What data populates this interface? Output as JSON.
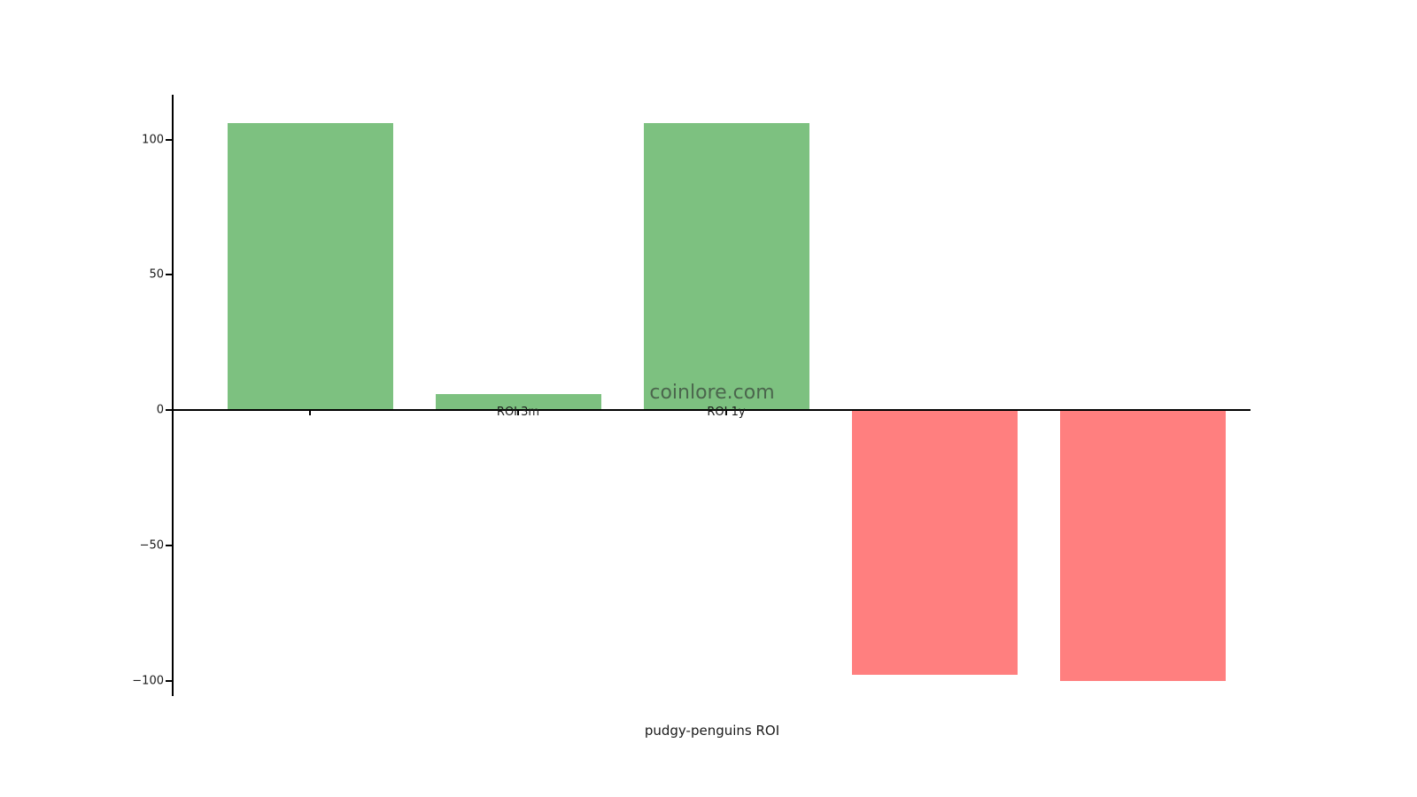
{
  "chart_data": {
    "type": "bar",
    "title": "pudgy-penguins ROI",
    "watermark": "coinlore.com",
    "categories": [
      "",
      "ROI 3m",
      "ROI 1y",
      "",
      ""
    ],
    "values": [
      106,
      6,
      106,
      -98,
      -100
    ],
    "bar_colors": [
      "#7dc180",
      "#7dc180",
      "#7dc180",
      "#ff7f7f",
      "#ff7f7f"
    ],
    "positive_color": "#7dc180",
    "negative_color": "#ff7f7f",
    "yticks": [
      {
        "value": 100,
        "label": "100"
      },
      {
        "value": 50,
        "label": "50"
      },
      {
        "value": 0,
        "label": "0"
      },
      {
        "value": -50,
        "label": "−50"
      },
      {
        "value": -100,
        "label": "−100"
      }
    ],
    "ylim": [
      -105.7,
      116.5
    ],
    "xlabel": "",
    "ylabel": "",
    "grid": false,
    "legend_position": "none"
  },
  "colors": {
    "axis": "#000000",
    "tick_label": "#1a1a1a",
    "title": "#1a1a1a",
    "background": "#ffffff"
  }
}
